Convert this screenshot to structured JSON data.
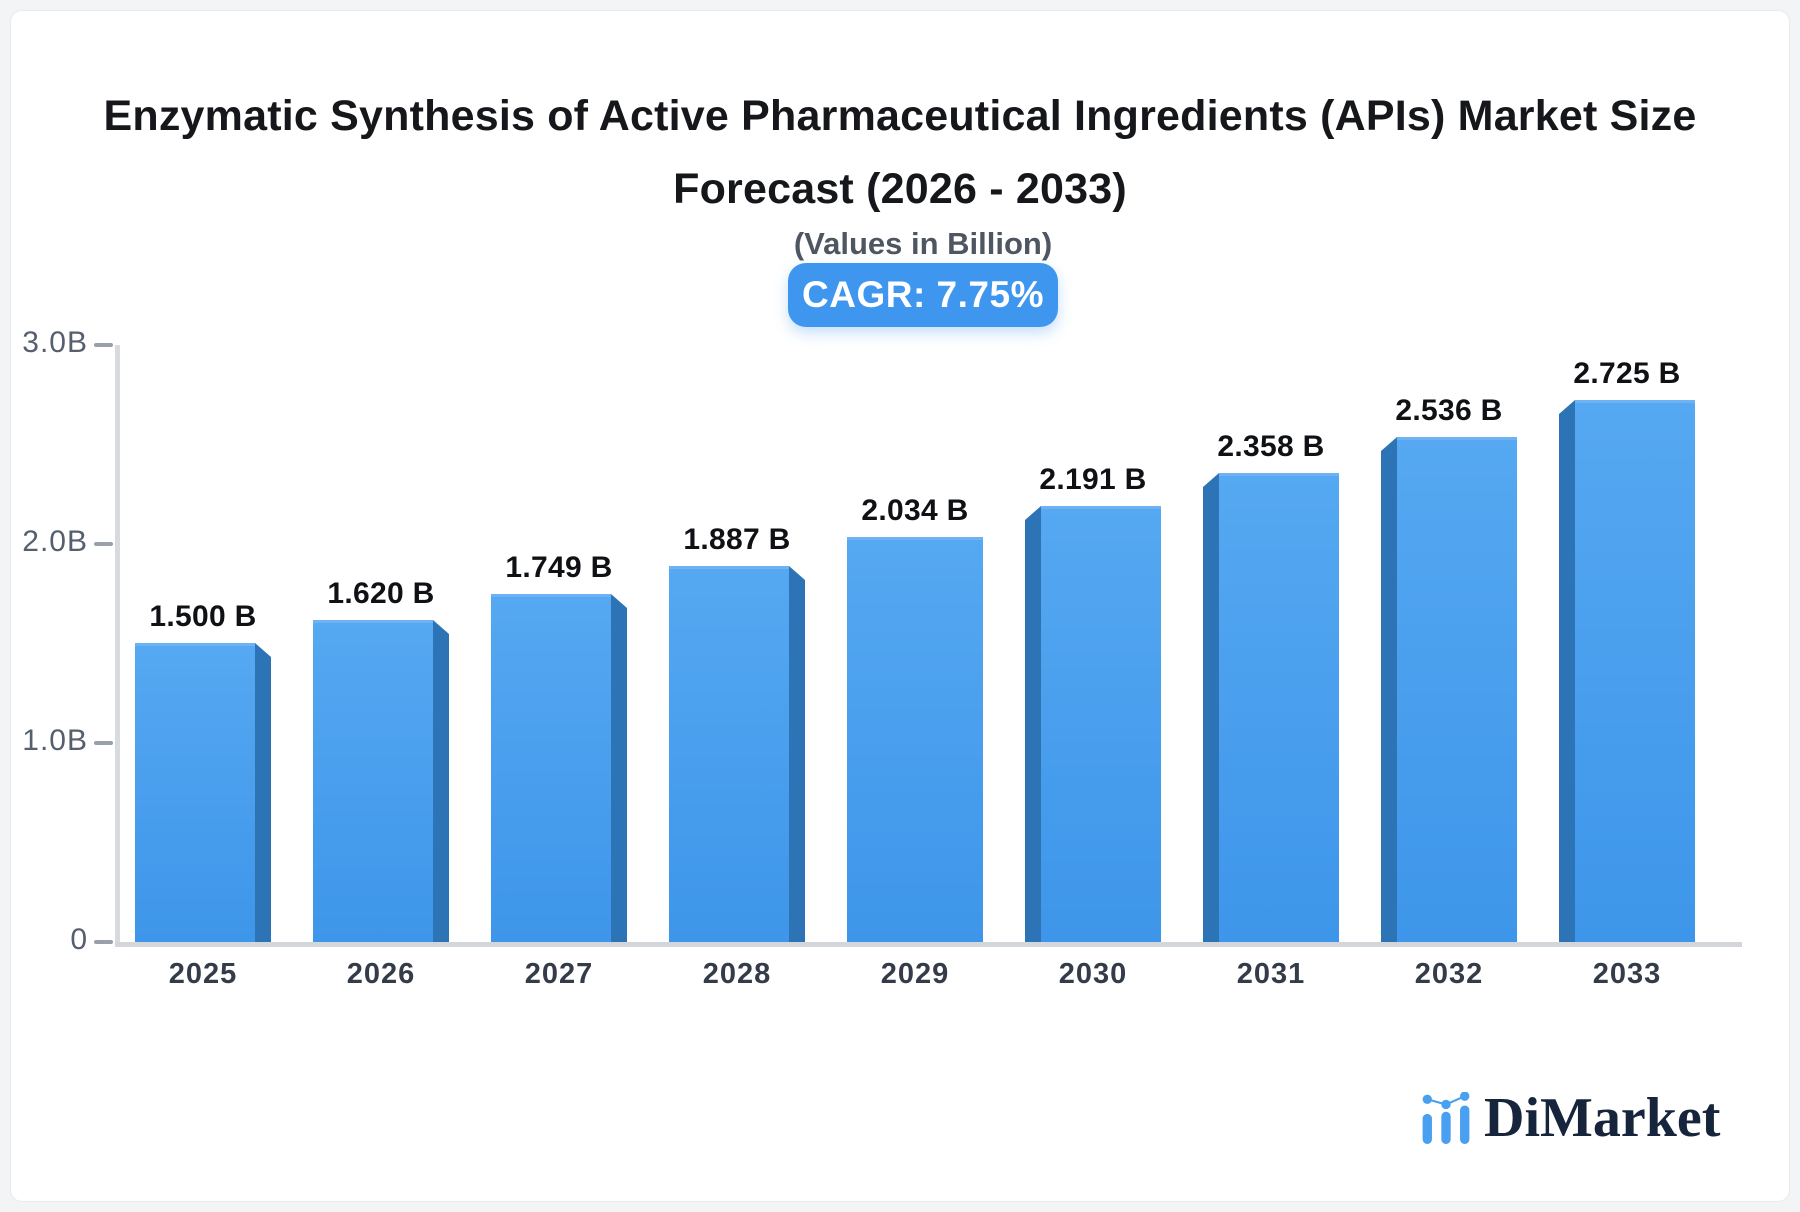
{
  "header": {
    "title_lines": [
      "Enzymatic Synthesis of Active Pharmaceutical Ingredients (APIs) Market Size",
      "Forecast (2026 - 2033)"
    ],
    "subtitle": "(Values in Billion)",
    "cagr_label": "CAGR: 7.75%"
  },
  "chart_data": {
    "type": "bar",
    "title": "Enzymatic Synthesis of Active Pharmaceutical Ingredients (APIs) Market Size Forecast (2026 - 2033)",
    "subtitle": "(Values in Billion)",
    "cagr": "7.75%",
    "unit": "Billion USD",
    "categories": [
      "2025",
      "2026",
      "2027",
      "2028",
      "2029",
      "2030",
      "2031",
      "2032",
      "2033"
    ],
    "values": [
      1.5,
      1.62,
      1.749,
      1.887,
      2.034,
      2.191,
      2.358,
      2.536,
      2.725
    ],
    "bar_labels": [
      "1.500 B",
      "1.620 B",
      "1.749 B",
      "1.887 B",
      "2.034 B",
      "2.191 B",
      "2.358 B",
      "2.536 B",
      "2.725 B"
    ],
    "y_ticks": [
      {
        "label": "3.0B",
        "value": 3.0
      },
      {
        "label": "2.0B",
        "value": 2.0
      },
      {
        "label": "1.0B",
        "value": 1.0
      },
      {
        "label": "0",
        "value": 0
      }
    ],
    "ylim": [
      0,
      3.0
    ],
    "grid": false,
    "legend": false,
    "colors": {
      "bar_top": "#55a8f1",
      "bar_bottom": "#3e96ea",
      "bar_side": "#2d74b6",
      "badge": "#3e96ee",
      "axis": "#d5d8dc"
    }
  },
  "footer": {
    "brand": "DiMarket"
  }
}
